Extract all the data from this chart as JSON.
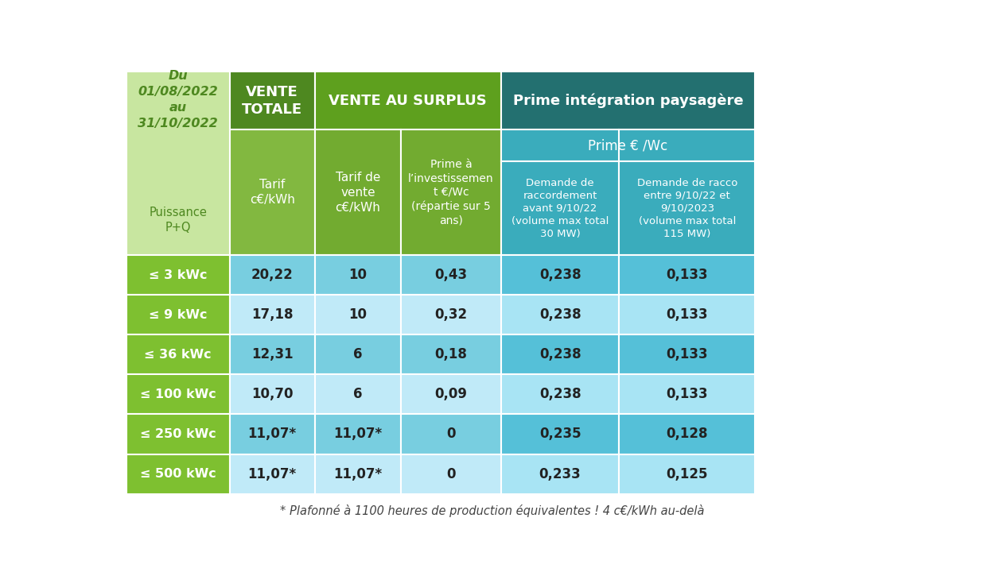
{
  "col0_date_text": "Du\n01/08/2022\nau\n31/10/2022",
  "col0_puissance_text": "Puissance\nP+Q",
  "col1_header": "VENTE\nTOTALE",
  "col23_header": "VENTE AU SURPLUS",
  "col45_header": "Prime intégration paysagère",
  "col1_subheader": "Tarif\nc€/kWh",
  "col2_subheader": "Tarif de\nvente\nc€/kWh",
  "col3_subheader": "Prime à\nl’investissemen\nt €/Wc\n(répartie sur 5\nans)",
  "col45_sub_top": "Prime € /Wc",
  "col4_subheader": "Demande de\nraccordement\navant 9/10/22\n(volume max total\n30 MW)",
  "col5_subheader": "Demande de racco\nentre 9/10/22 et\n9/10/2023\n(volume max total\n115 MW)",
  "rows": [
    [
      "≤ 3 kWc",
      "20,22",
      "10",
      "0,43",
      "0,238",
      "0,133"
    ],
    [
      "≤ 9 kWc",
      "17,18",
      "10",
      "0,32",
      "0,238",
      "0,133"
    ],
    [
      "≤ 36 kWc",
      "12,31",
      "6",
      "0,18",
      "0,238",
      "0,133"
    ],
    [
      "≤ 100 kWc",
      "10,70",
      "6",
      "0,09",
      "0,238",
      "0,133"
    ],
    [
      "≤ 250 kWc",
      "11,07*",
      "11,07*",
      "0",
      "0,235",
      "0,128"
    ],
    [
      "≤ 500 kWc",
      "11,07*",
      "11,07*",
      "0",
      "0,233",
      "0,125"
    ]
  ],
  "footnote": "* Plafonné à 1100 heures de production équivalentes ! 4 c€/kWh au-delà",
  "color_col0_bg": "#c8e6a0",
  "color_col1_header": "#4e8820",
  "color_col23_header": "#5ea01e",
  "color_prime_header": "#237070",
  "color_col1_subheader": "#82b840",
  "color_col23_subheader": "#72ab30",
  "color_prime_subheader_top": "#3aacbc",
  "color_prime_subheader_bot": "#3aacbc",
  "color_col0_row": "#7ec030",
  "color_data_odd_left": "#78cee0",
  "color_data_even_left": "#c0eaf8",
  "color_data_odd_right": "#55c0d8",
  "color_data_even_right": "#a8e4f4",
  "border_color": "#ffffff",
  "text_col0_date": "#4e8820",
  "text_col0_puissance": "#4e8820",
  "text_white": "#ffffff",
  "text_dark": "#222222",
  "footnote_color": "#444444"
}
